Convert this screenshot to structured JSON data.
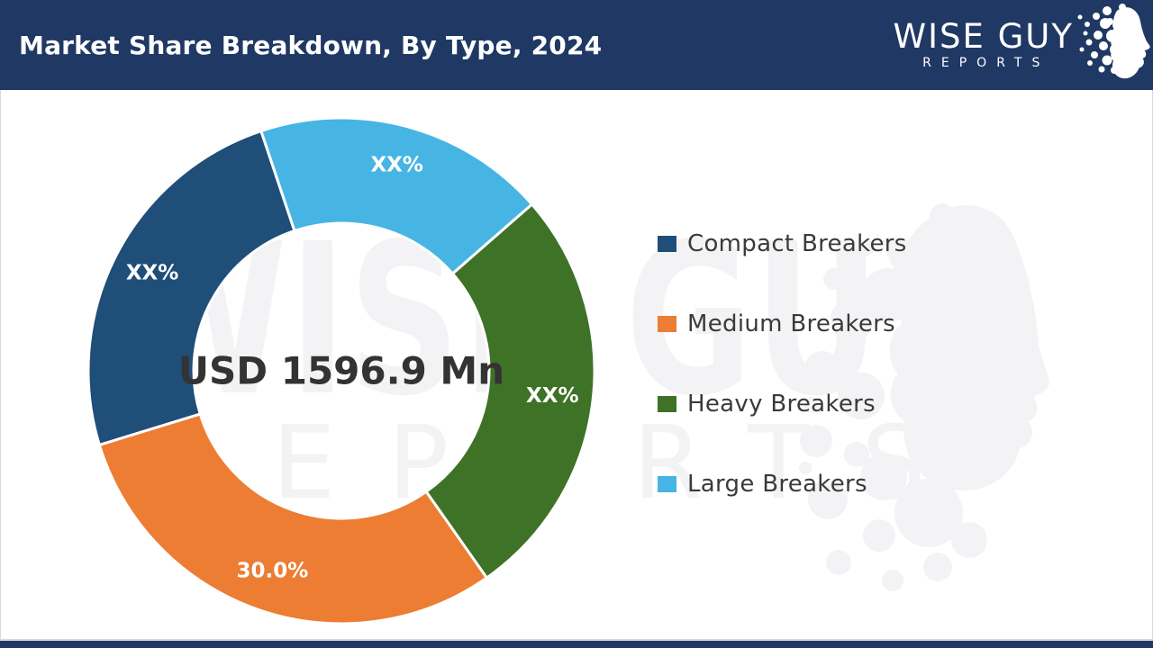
{
  "header": {
    "title": "Market Share Breakdown, By Type, 2024",
    "logo_line1": "WISE GUY",
    "logo_line2": "REPORTS",
    "bg_color": "#203864"
  },
  "chart_data": {
    "type": "pie",
    "subtype": "donut",
    "title": "Market Share Breakdown, By Type, 2024",
    "center_label": "USD 1596.9 Mn",
    "categories": [
      "Compact Breakers",
      "Medium Breakers",
      "Heavy Breakers",
      "Large Breakers"
    ],
    "values": [
      24.6,
      30.0,
      26.7,
      18.7
    ],
    "slice_labels": [
      "XX%",
      "30.0%",
      "XX%",
      "XX%"
    ],
    "colors": [
      "#1f4e79",
      "#ec7d33",
      "#3e7227",
      "#47b5e3"
    ],
    "start_angle_deg": 108.5,
    "direction": "counterclockwise",
    "legend_position": "right",
    "units_note": "Only the Medium Breakers slice shows a numeric label (30.0%); other slices are masked as XX%"
  },
  "watermark": {
    "line1": "WISE GUY",
    "line2": "REPORTS"
  }
}
